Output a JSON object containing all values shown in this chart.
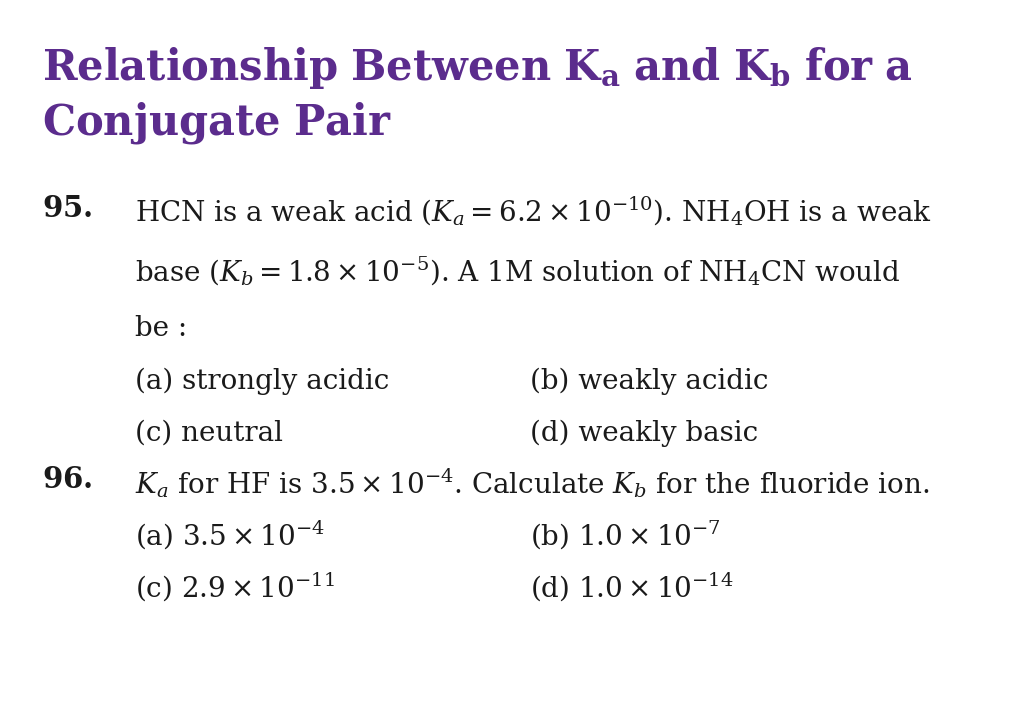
{
  "title_color": "#5B2C8D",
  "background_color": "#ffffff",
  "black": "#1a1a1a",
  "fs_title": 30,
  "fs_body": 20,
  "fs_num": 21
}
